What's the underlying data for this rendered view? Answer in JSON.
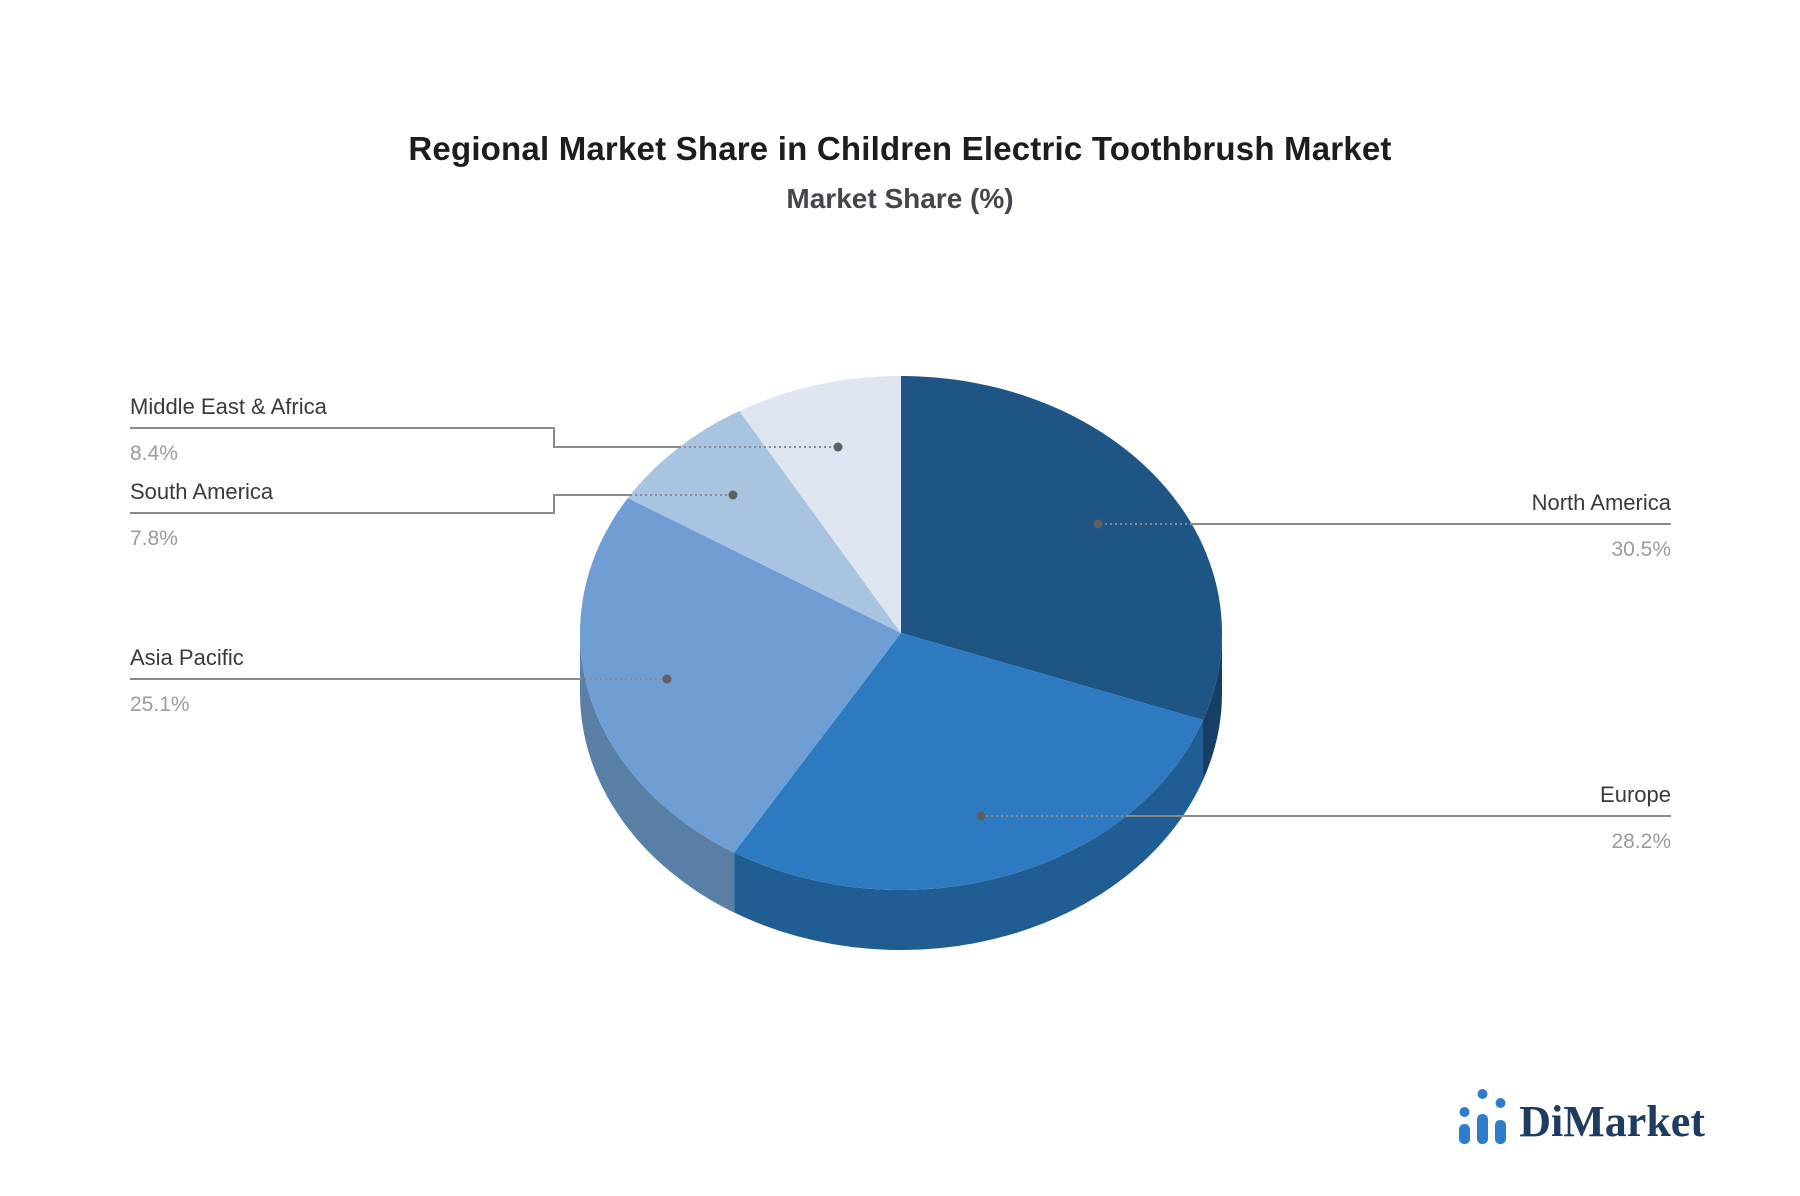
{
  "title": "Regional Market Share in Children Electric Toothbrush Market",
  "subtitle": "Market Share (%)",
  "brand": {
    "name": "DiMarket",
    "text_color": "#1e3c60",
    "icon_color": "#2f7ccb"
  },
  "chart_data": {
    "type": "pie",
    "title": "Regional Market Share in Children Electric Toothbrush Market",
    "subtitle": "Market Share (%)",
    "unit": "%",
    "effect": "3d",
    "start_angle_deg": 0,
    "direction": "clockwise",
    "categories": [
      "North America",
      "Europe",
      "Asia Pacific",
      "South America",
      "Middle East & Africa"
    ],
    "values": [
      30.5,
      28.2,
      25.1,
      7.8,
      8.4
    ],
    "labels": [
      "30.5%",
      "28.2%",
      "25.1%",
      "7.8%",
      "8.4%"
    ],
    "colors": [
      "#1e5585",
      "#2d7ac1",
      "#6f9ed4",
      "#a8c4e0",
      "#dee5f0"
    ],
    "side_colors": [
      "#173f63",
      "#205d92",
      "#5a7fa6",
      "#7e9cbd",
      "#b6c4d6"
    ],
    "label_name_color": "#3a3a3a",
    "label_value_color": "#9b9b9b",
    "connector_color": "#8a8a8a",
    "dot_color": "#606060",
    "legend": "none",
    "grid": false
  }
}
